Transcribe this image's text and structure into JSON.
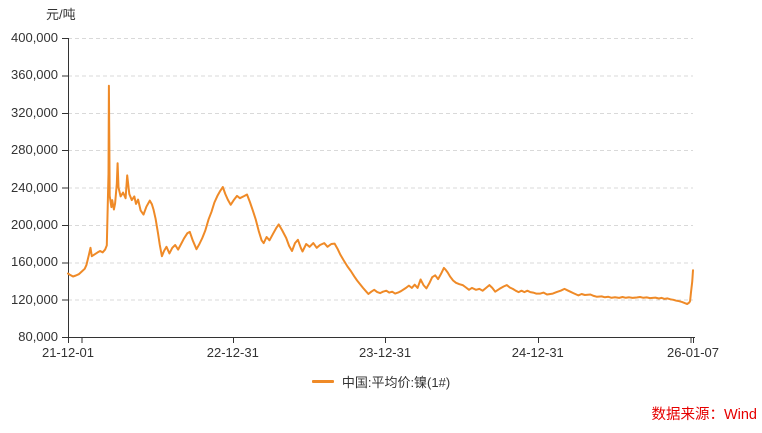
{
  "unit_label": "元/吨",
  "source_label": "数据来源：Wind",
  "colors": {
    "line": "#ef8a27",
    "source_text": "#e60000",
    "axis": "#333333",
    "grid": "#d9d9d9",
    "label": "#333333"
  },
  "chart_data": {
    "type": "line",
    "title": "",
    "xlabel": "",
    "ylabel": "元/吨",
    "series_name": "中国:平均价:镍(1#)",
    "legend_position": "bottom-center",
    "grid": "horizontal-dashed",
    "ylim": [
      80000,
      400000
    ],
    "ytick_step": 40000,
    "yticks": [
      80000,
      120000,
      160000,
      200000,
      240000,
      280000,
      320000,
      360000,
      400000
    ],
    "x_range": [
      "2021-12-01",
      "2026-01-07"
    ],
    "xticks": [
      {
        "label": "21-12-01",
        "date": "2021-12-01"
      },
      {
        "label": "22-12-31",
        "date": "2022-12-31"
      },
      {
        "label": "23-12-31",
        "date": "2023-12-31"
      },
      {
        "label": "24-12-31",
        "date": "2024-12-31"
      },
      {
        "label": "26-01-07",
        "date": "2026-01-07"
      }
    ],
    "minor_xticks": [
      "2022-01-02",
      "2026-01-01"
    ],
    "points": [
      [
        "2021-12-01",
        148000
      ],
      [
        "2021-12-06",
        146500
      ],
      [
        "2021-12-13",
        144800
      ],
      [
        "2021-12-20",
        145800
      ],
      [
        "2021-12-27",
        147200
      ],
      [
        "2022-01-04",
        150500
      ],
      [
        "2022-01-10",
        153000
      ],
      [
        "2022-01-14",
        157000
      ],
      [
        "2022-01-20",
        168000
      ],
      [
        "2022-01-24",
        175500
      ],
      [
        "2022-01-27",
        166500
      ],
      [
        "2022-02-03",
        168500
      ],
      [
        "2022-02-10",
        170500
      ],
      [
        "2022-02-16",
        172000
      ],
      [
        "2022-02-22",
        170500
      ],
      [
        "2022-02-28",
        173500
      ],
      [
        "2022-03-04",
        178000
      ],
      [
        "2022-03-08",
        255000
      ],
      [
        "2022-03-09",
        349000
      ],
      [
        "2022-03-10",
        292000
      ],
      [
        "2022-03-11",
        231000
      ],
      [
        "2022-03-15",
        219000
      ],
      [
        "2022-03-17",
        226500
      ],
      [
        "2022-03-21",
        216500
      ],
      [
        "2022-03-24",
        223000
      ],
      [
        "2022-03-28",
        244000
      ],
      [
        "2022-03-30",
        266000
      ],
      [
        "2022-04-01",
        240000
      ],
      [
        "2022-04-06",
        230500
      ],
      [
        "2022-04-12",
        234500
      ],
      [
        "2022-04-18",
        228500
      ],
      [
        "2022-04-22",
        253000
      ],
      [
        "2022-04-27",
        233000
      ],
      [
        "2022-05-03",
        226500
      ],
      [
        "2022-05-09",
        230500
      ],
      [
        "2022-05-13",
        222500
      ],
      [
        "2022-05-18",
        227000
      ],
      [
        "2022-05-24",
        215500
      ],
      [
        "2022-05-31",
        211000
      ],
      [
        "2022-06-07",
        219500
      ],
      [
        "2022-06-15",
        226000
      ],
      [
        "2022-06-20",
        222000
      ],
      [
        "2022-06-24",
        216500
      ],
      [
        "2022-06-29",
        206500
      ],
      [
        "2022-07-05",
        190500
      ],
      [
        "2022-07-09",
        178500
      ],
      [
        "2022-07-14",
        166500
      ],
      [
        "2022-07-19",
        172000
      ],
      [
        "2022-07-25",
        176500
      ],
      [
        "2022-08-01",
        169500
      ],
      [
        "2022-08-08",
        175500
      ],
      [
        "2022-08-15",
        178500
      ],
      [
        "2022-08-22",
        173500
      ],
      [
        "2022-08-29",
        179500
      ],
      [
        "2022-09-05",
        185500
      ],
      [
        "2022-09-13",
        191000
      ],
      [
        "2022-09-19",
        192500
      ],
      [
        "2022-09-26",
        183500
      ],
      [
        "2022-10-05",
        174000
      ],
      [
        "2022-10-12",
        179500
      ],
      [
        "2022-10-19",
        186000
      ],
      [
        "2022-10-26",
        194000
      ],
      [
        "2022-11-03",
        206000
      ],
      [
        "2022-11-10",
        214000
      ],
      [
        "2022-11-17",
        224000
      ],
      [
        "2022-11-24",
        231000
      ],
      [
        "2022-12-01",
        236500
      ],
      [
        "2022-12-07",
        240500
      ],
      [
        "2022-12-13",
        233000
      ],
      [
        "2022-12-19",
        227000
      ],
      [
        "2022-12-26",
        221500
      ],
      [
        "2023-01-03",
        227000
      ],
      [
        "2023-01-10",
        231000
      ],
      [
        "2023-01-17",
        228500
      ],
      [
        "2023-01-28",
        231000
      ],
      [
        "2023-02-03",
        232500
      ],
      [
        "2023-02-10",
        224500
      ],
      [
        "2023-02-17",
        215500
      ],
      [
        "2023-02-24",
        205500
      ],
      [
        "2023-03-03",
        193500
      ],
      [
        "2023-03-10",
        183500
      ],
      [
        "2023-03-15",
        180500
      ],
      [
        "2023-03-22",
        187000
      ],
      [
        "2023-03-29",
        183500
      ],
      [
        "2023-04-07",
        191000
      ],
      [
        "2023-04-14",
        196500
      ],
      [
        "2023-04-20",
        200500
      ],
      [
        "2023-04-28",
        194500
      ],
      [
        "2023-05-08",
        186000
      ],
      [
        "2023-05-15",
        177500
      ],
      [
        "2023-05-22",
        172000
      ],
      [
        "2023-05-29",
        180500
      ],
      [
        "2023-06-05",
        184000
      ],
      [
        "2023-06-12",
        175500
      ],
      [
        "2023-06-16",
        171500
      ],
      [
        "2023-06-25",
        179500
      ],
      [
        "2023-07-03",
        176500
      ],
      [
        "2023-07-12",
        180500
      ],
      [
        "2023-07-20",
        175500
      ],
      [
        "2023-07-28",
        178500
      ],
      [
        "2023-08-07",
        180500
      ],
      [
        "2023-08-15",
        176500
      ],
      [
        "2023-08-24",
        179500
      ],
      [
        "2023-09-01",
        180000
      ],
      [
        "2023-09-08",
        174500
      ],
      [
        "2023-09-15",
        168000
      ],
      [
        "2023-09-22",
        162500
      ],
      [
        "2023-10-02",
        155500
      ],
      [
        "2023-10-10",
        150500
      ],
      [
        "2023-10-18",
        145000
      ],
      [
        "2023-10-25",
        140500
      ],
      [
        "2023-11-01",
        136500
      ],
      [
        "2023-11-08",
        132500
      ],
      [
        "2023-11-15",
        129000
      ],
      [
        "2023-11-21",
        126000
      ],
      [
        "2023-11-28",
        128500
      ],
      [
        "2023-12-05",
        130500
      ],
      [
        "2023-12-12",
        128000
      ],
      [
        "2023-12-19",
        127000
      ],
      [
        "2023-12-26",
        128500
      ],
      [
        "2024-01-03",
        129500
      ],
      [
        "2024-01-10",
        127500
      ],
      [
        "2024-01-17",
        128500
      ],
      [
        "2024-01-24",
        126500
      ],
      [
        "2024-01-31",
        127500
      ],
      [
        "2024-02-07",
        129000
      ],
      [
        "2024-02-19",
        132500
      ],
      [
        "2024-02-26",
        135000
      ],
      [
        "2024-03-04",
        132500
      ],
      [
        "2024-03-11",
        136000
      ],
      [
        "2024-03-18",
        132500
      ],
      [
        "2024-03-25",
        141500
      ],
      [
        "2024-04-01",
        135500
      ],
      [
        "2024-04-08",
        132000
      ],
      [
        "2024-04-15",
        137500
      ],
      [
        "2024-04-22",
        144000
      ],
      [
        "2024-04-29",
        146000
      ],
      [
        "2024-05-06",
        142000
      ],
      [
        "2024-05-13",
        147500
      ],
      [
        "2024-05-20",
        154000
      ],
      [
        "2024-05-24",
        152000
      ],
      [
        "2024-05-29",
        149000
      ],
      [
        "2024-06-04",
        144500
      ],
      [
        "2024-06-11",
        140500
      ],
      [
        "2024-06-18",
        138000
      ],
      [
        "2024-06-26",
        136500
      ],
      [
        "2024-07-04",
        135500
      ],
      [
        "2024-07-12",
        133000
      ],
      [
        "2024-07-19",
        130500
      ],
      [
        "2024-07-26",
        132500
      ],
      [
        "2024-08-05",
        130500
      ],
      [
        "2024-08-13",
        131500
      ],
      [
        "2024-08-21",
        129500
      ],
      [
        "2024-08-29",
        132500
      ],
      [
        "2024-09-06",
        135500
      ],
      [
        "2024-09-13",
        132500
      ],
      [
        "2024-09-20",
        128500
      ],
      [
        "2024-09-30",
        131500
      ],
      [
        "2024-10-10",
        134000
      ],
      [
        "2024-10-18",
        135500
      ],
      [
        "2024-10-25",
        133000
      ],
      [
        "2024-11-01",
        131500
      ],
      [
        "2024-11-08",
        129500
      ],
      [
        "2024-11-15",
        128000
      ],
      [
        "2024-11-22",
        129500
      ],
      [
        "2024-11-29",
        128000
      ],
      [
        "2024-12-06",
        129500
      ],
      [
        "2024-12-13",
        128000
      ],
      [
        "2024-12-20",
        127500
      ],
      [
        "2024-12-27",
        126500
      ],
      [
        "2025-01-06",
        126500
      ],
      [
        "2025-01-14",
        127500
      ],
      [
        "2025-01-22",
        125500
      ],
      [
        "2025-02-05",
        126500
      ],
      [
        "2025-02-14",
        128000
      ],
      [
        "2025-02-24",
        129500
      ],
      [
        "2025-03-05",
        131500
      ],
      [
        "2025-03-12",
        130000
      ],
      [
        "2025-03-19",
        128500
      ],
      [
        "2025-03-26",
        127000
      ],
      [
        "2025-04-07",
        124500
      ],
      [
        "2025-04-15",
        126000
      ],
      [
        "2025-04-23",
        125000
      ],
      [
        "2025-05-06",
        125500
      ],
      [
        "2025-05-14",
        124000
      ],
      [
        "2025-05-22",
        123000
      ],
      [
        "2025-06-02",
        123500
      ],
      [
        "2025-06-10",
        122500
      ],
      [
        "2025-06-18",
        123000
      ],
      [
        "2025-06-26",
        122000
      ],
      [
        "2025-07-04",
        122500
      ],
      [
        "2025-07-14",
        121800
      ],
      [
        "2025-07-22",
        122800
      ],
      [
        "2025-07-30",
        122000
      ],
      [
        "2025-08-07",
        122500
      ],
      [
        "2025-08-15",
        121800
      ],
      [
        "2025-08-25",
        122300
      ],
      [
        "2025-09-02",
        122800
      ],
      [
        "2025-09-10",
        122000
      ],
      [
        "2025-09-18",
        122400
      ],
      [
        "2025-09-26",
        121600
      ],
      [
        "2025-10-09",
        122200
      ],
      [
        "2025-10-17",
        121200
      ],
      [
        "2025-10-24",
        121800
      ],
      [
        "2025-10-31",
        120800
      ],
      [
        "2025-11-07",
        121300
      ],
      [
        "2025-11-14",
        120300
      ],
      [
        "2025-11-21",
        119800
      ],
      [
        "2025-11-28",
        118800
      ],
      [
        "2025-12-05",
        118300
      ],
      [
        "2025-12-12",
        117300
      ],
      [
        "2025-12-18",
        116300
      ],
      [
        "2025-12-24",
        115300
      ],
      [
        "2025-12-29",
        116800
      ],
      [
        "2025-12-31",
        118500
      ],
      [
        "2026-01-02",
        127000
      ],
      [
        "2026-01-05",
        139000
      ],
      [
        "2026-01-06",
        145000
      ],
      [
        "2026-01-07",
        151500
      ]
    ]
  }
}
